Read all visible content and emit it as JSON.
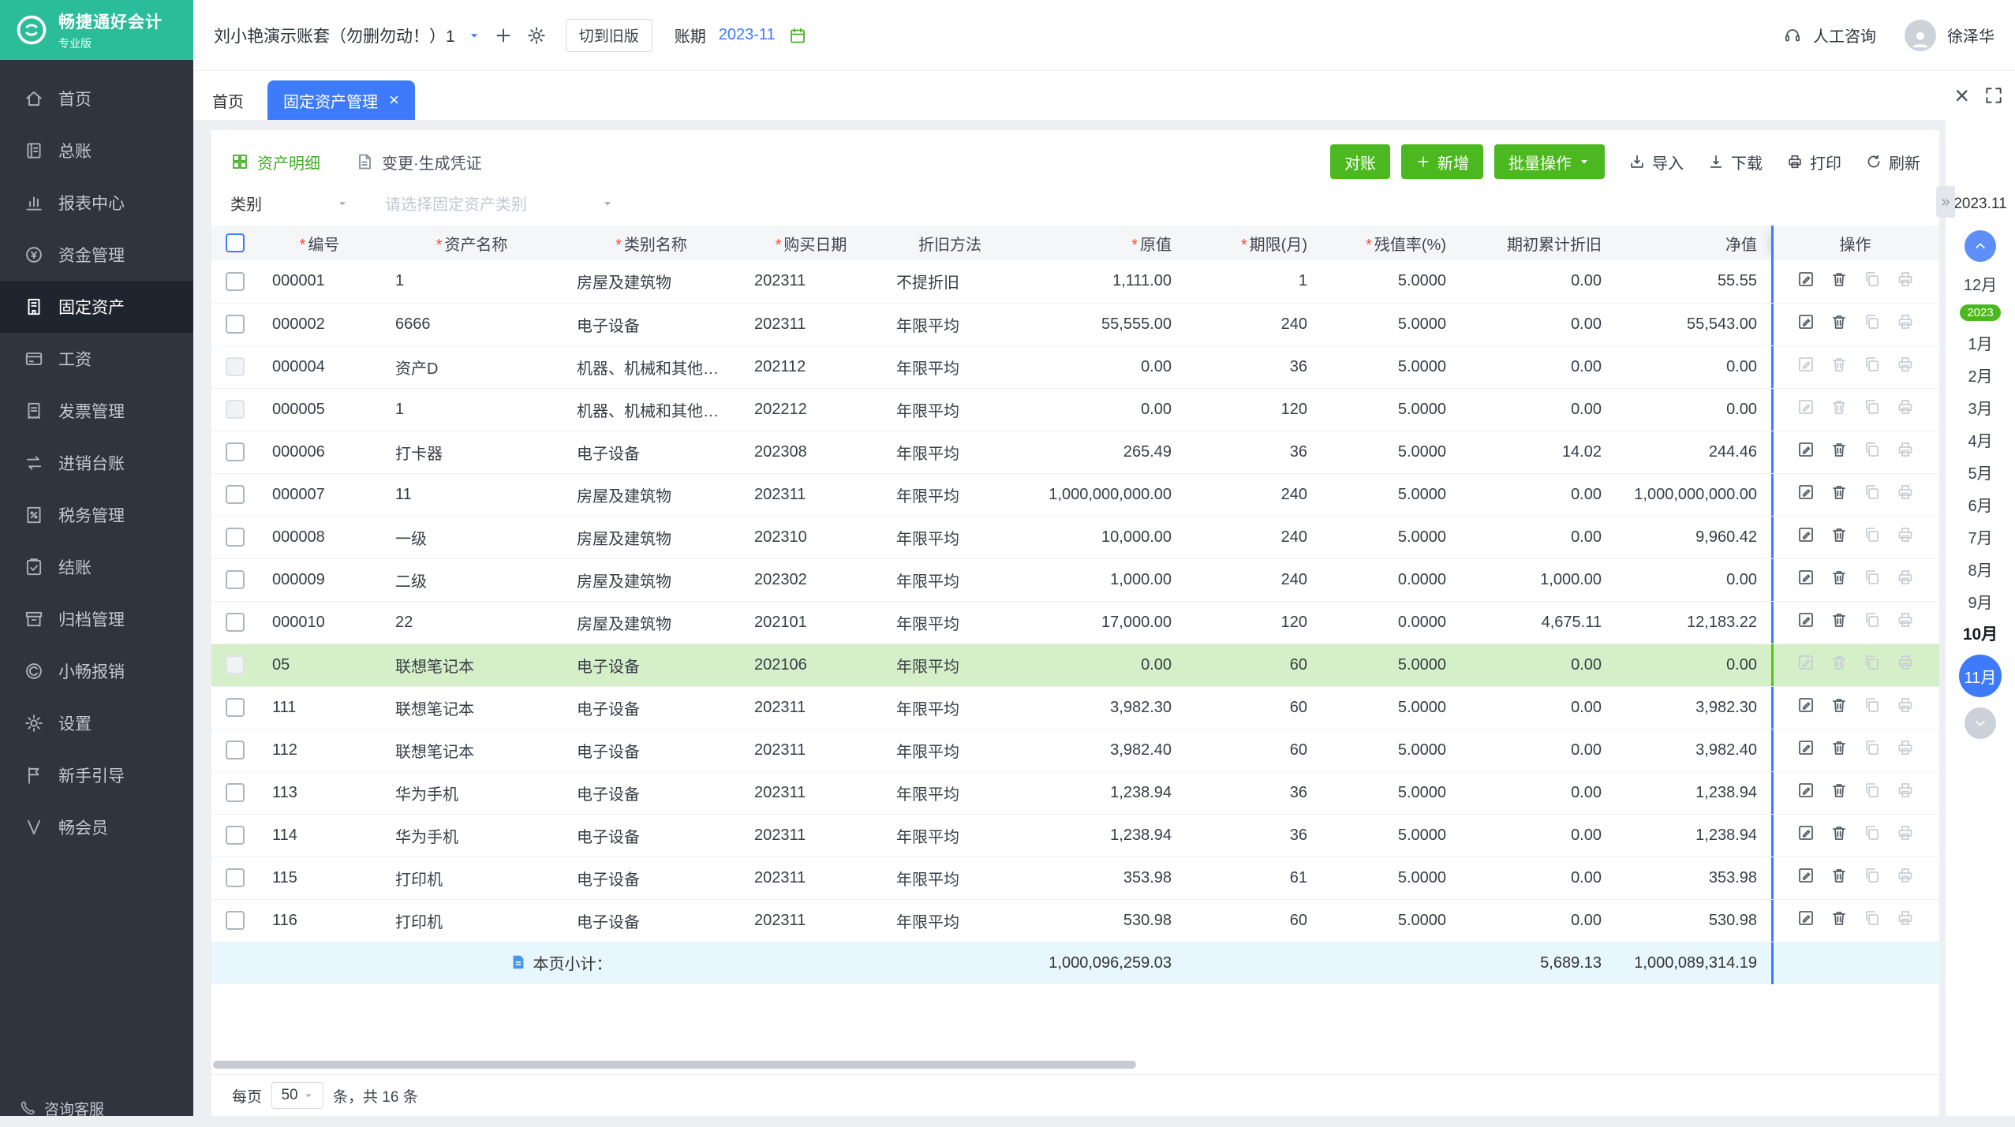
{
  "glyphs": {
    "close": "×"
  },
  "colors": {
    "green": "#4cb81f",
    "blue": "#3e7bfa",
    "teal": "#2bbd9a",
    "highlight_row": "#d5efc8",
    "subtotal_bg": "#e8f6fd"
  },
  "sidebar": {
    "logo_title": "畅捷通好会计",
    "logo_subtitle": "专业版",
    "items": [
      {
        "label": "首页",
        "icon": "home",
        "active": false
      },
      {
        "label": "总账",
        "icon": "ledger",
        "active": false
      },
      {
        "label": "报表中心",
        "icon": "report",
        "active": false
      },
      {
        "label": "资金管理",
        "icon": "fund",
        "active": false
      },
      {
        "label": "固定资产",
        "icon": "asset",
        "active": true
      },
      {
        "label": "工资",
        "icon": "salary",
        "active": false
      },
      {
        "label": "发票管理",
        "icon": "invoice",
        "active": false
      },
      {
        "label": "进销台账",
        "icon": "trade",
        "active": false
      },
      {
        "label": "税务管理",
        "icon": "tax",
        "active": false
      },
      {
        "label": "结账",
        "icon": "closing",
        "active": false
      },
      {
        "label": "归档管理",
        "icon": "archive",
        "active": false
      },
      {
        "label": "小畅报销",
        "icon": "expense",
        "active": false
      },
      {
        "label": "设置",
        "icon": "settings",
        "active": false
      },
      {
        "label": "新手引导",
        "icon": "guide",
        "active": false
      },
      {
        "label": "畅会员",
        "icon": "member",
        "active": false
      }
    ],
    "footer_label": "咨询客服"
  },
  "topbar": {
    "account_name": "刘小艳演示账套（勿删勿动！）1",
    "switch_version": "切到旧版",
    "period_label": "账期",
    "period_value": "2023-11",
    "support": "人工咨询",
    "username": "徐泽华"
  },
  "tabs": {
    "items": [
      {
        "label": "首页",
        "active": false,
        "closable": false
      },
      {
        "label": "固定资产管理",
        "active": true,
        "closable": true
      }
    ]
  },
  "toolbar": {
    "view_tabs": [
      {
        "label": "资产明细",
        "icon": "grid",
        "active": true
      },
      {
        "label": "变更·生成凭证",
        "icon": "doc",
        "active": false
      }
    ],
    "primary": [
      {
        "label": "对账"
      },
      {
        "label": "新增",
        "icon": "plus"
      },
      {
        "label": "批量操作",
        "caret": true
      }
    ],
    "secondary": [
      {
        "label": "导入",
        "icon": "import"
      },
      {
        "label": "下载",
        "icon": "download"
      },
      {
        "label": "打印",
        "icon": "print"
      },
      {
        "label": "刷新",
        "icon": "refresh"
      }
    ]
  },
  "filters": {
    "label": "类别",
    "placeholder": "请选择固定资产类别"
  },
  "table": {
    "ops_label": "操作",
    "columns": [
      {
        "key": "id",
        "label": "编号",
        "required": true,
        "align": "left"
      },
      {
        "key": "name",
        "label": "资产名称",
        "required": true,
        "align": "left"
      },
      {
        "key": "category",
        "label": "类别名称",
        "required": true,
        "align": "left"
      },
      {
        "key": "buy_date",
        "label": "购买日期",
        "required": true,
        "align": "left"
      },
      {
        "key": "method",
        "label": "折旧方法",
        "required": false,
        "align": "left"
      },
      {
        "key": "original",
        "label": "原值",
        "required": true,
        "align": "right"
      },
      {
        "key": "months",
        "label": "期限(月)",
        "required": true,
        "align": "right"
      },
      {
        "key": "residual",
        "label": "残值率(%)",
        "required": true,
        "align": "right"
      },
      {
        "key": "init_dep",
        "label": "期初累计折旧",
        "required": false,
        "align": "right"
      },
      {
        "key": "net",
        "label": "净值",
        "required": false,
        "align": "right"
      }
    ],
    "rows": [
      {
        "id": "000001",
        "name": "1",
        "category": "房屋及建筑物",
        "buy_date": "202311",
        "method": "不提折旧",
        "original": "1,111.00",
        "months": "1",
        "residual": "5.0000",
        "init_dep": "0.00",
        "net": "55.55",
        "state": "normal"
      },
      {
        "id": "000002",
        "name": "6666",
        "category": "电子设备",
        "buy_date": "202311",
        "method": "年限平均",
        "original": "55,555.00",
        "months": "240",
        "residual": "5.0000",
        "init_dep": "0.00",
        "net": "55,543.00",
        "state": "normal"
      },
      {
        "id": "000004",
        "name": "资产D",
        "category": "机器、机械和其他生...",
        "buy_date": "202112",
        "method": "年限平均",
        "original": "0.00",
        "months": "36",
        "residual": "5.0000",
        "init_dep": "0.00",
        "net": "0.00",
        "state": "disabled"
      },
      {
        "id": "000005",
        "name": "1",
        "category": "机器、机械和其他生...",
        "buy_date": "202212",
        "method": "年限平均",
        "original": "0.00",
        "months": "120",
        "residual": "5.0000",
        "init_dep": "0.00",
        "net": "0.00",
        "state": "disabled"
      },
      {
        "id": "000006",
        "name": "打卡器",
        "category": "电子设备",
        "buy_date": "202308",
        "method": "年限平均",
        "original": "265.49",
        "months": "36",
        "residual": "5.0000",
        "init_dep": "14.02",
        "net": "244.46",
        "state": "normal"
      },
      {
        "id": "000007",
        "name": "11",
        "category": "房屋及建筑物",
        "buy_date": "202311",
        "method": "年限平均",
        "original": "1,000,000,000.00",
        "months": "240",
        "residual": "5.0000",
        "init_dep": "0.00",
        "net": "1,000,000,000.00",
        "state": "normal"
      },
      {
        "id": "000008",
        "name": "一级",
        "category": "房屋及建筑物",
        "buy_date": "202310",
        "method": "年限平均",
        "original": "10,000.00",
        "months": "240",
        "residual": "5.0000",
        "init_dep": "0.00",
        "net": "9,960.42",
        "state": "normal"
      },
      {
        "id": "000009",
        "name": "二级",
        "category": "房屋及建筑物",
        "buy_date": "202302",
        "method": "年限平均",
        "original": "1,000.00",
        "months": "240",
        "residual": "0.0000",
        "init_dep": "1,000.00",
        "net": "0.00",
        "state": "normal"
      },
      {
        "id": "000010",
        "name": "22",
        "category": "房屋及建筑物",
        "buy_date": "202101",
        "method": "年限平均",
        "original": "17,000.00",
        "months": "120",
        "residual": "0.0000",
        "init_dep": "4,675.11",
        "net": "12,183.22",
        "state": "normal"
      },
      {
        "id": "05",
        "name": "联想笔记本",
        "category": "电子设备",
        "buy_date": "202106",
        "method": "年限平均",
        "original": "0.00",
        "months": "60",
        "residual": "5.0000",
        "init_dep": "0.00",
        "net": "0.00",
        "state": "highlight"
      },
      {
        "id": "111",
        "name": "联想笔记本",
        "category": "电子设备",
        "buy_date": "202311",
        "method": "年限平均",
        "original": "3,982.30",
        "months": "60",
        "residual": "5.0000",
        "init_dep": "0.00",
        "net": "3,982.30",
        "state": "normal"
      },
      {
        "id": "112",
        "name": "联想笔记本",
        "category": "电子设备",
        "buy_date": "202311",
        "method": "年限平均",
        "original": "3,982.40",
        "months": "60",
        "residual": "5.0000",
        "init_dep": "0.00",
        "net": "3,982.40",
        "state": "normal"
      },
      {
        "id": "113",
        "name": "华为手机",
        "category": "电子设备",
        "buy_date": "202311",
        "method": "年限平均",
        "original": "1,238.94",
        "months": "36",
        "residual": "5.0000",
        "init_dep": "0.00",
        "net": "1,238.94",
        "state": "normal"
      },
      {
        "id": "114",
        "name": "华为手机",
        "category": "电子设备",
        "buy_date": "202311",
        "method": "年限平均",
        "original": "1,238.94",
        "months": "36",
        "residual": "5.0000",
        "init_dep": "0.00",
        "net": "1,238.94",
        "state": "normal"
      },
      {
        "id": "115",
        "name": "打印机",
        "category": "电子设备",
        "buy_date": "202311",
        "method": "年限平均",
        "original": "353.98",
        "months": "61",
        "residual": "5.0000",
        "init_dep": "0.00",
        "net": "353.98",
        "state": "normal"
      },
      {
        "id": "116",
        "name": "打印机",
        "category": "电子设备",
        "buy_date": "202311",
        "method": "年限平均",
        "original": "530.98",
        "months": "60",
        "residual": "5.0000",
        "init_dep": "0.00",
        "net": "530.98",
        "state": "normal"
      }
    ],
    "subtotal": {
      "label": "本页小计：",
      "original": "1,000,096,259.03",
      "init_dep": "5,689.13",
      "net": "1,000,089,314.19"
    }
  },
  "pagination": {
    "per_page_label": "每页",
    "per_page": "50",
    "total_label": "条，共 16 条"
  },
  "calendar": {
    "collapse_handle": "»",
    "title": "2023.11",
    "items": [
      {
        "type": "nav-up"
      },
      {
        "type": "month",
        "label": "12月"
      },
      {
        "type": "year-badge",
        "label": "2023"
      },
      {
        "type": "month",
        "label": "1月"
      },
      {
        "type": "month",
        "label": "2月"
      },
      {
        "type": "month",
        "label": "3月"
      },
      {
        "type": "month",
        "label": "4月"
      },
      {
        "type": "month",
        "label": "5月"
      },
      {
        "type": "month",
        "label": "6月"
      },
      {
        "type": "month",
        "label": "7月"
      },
      {
        "type": "month",
        "label": "8月"
      },
      {
        "type": "month",
        "label": "9月"
      },
      {
        "type": "month",
        "label": "10月",
        "emphasis": true
      },
      {
        "type": "month",
        "label": "11月",
        "selected": true
      },
      {
        "type": "nav-down"
      }
    ]
  }
}
